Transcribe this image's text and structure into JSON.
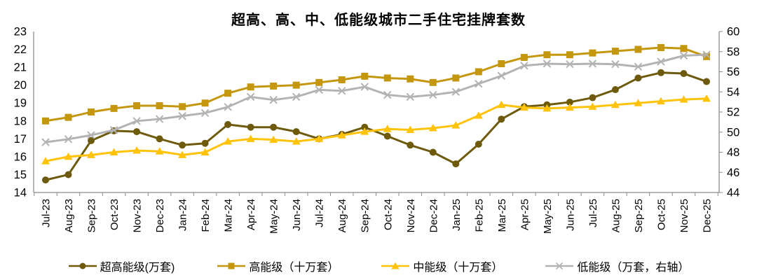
{
  "title": "超高、高、中、低能级城市二手住宅挂牌套数",
  "chart_data": {
    "type": "line",
    "x": [
      "Jul-23",
      "Aug-23",
      "Sep-23",
      "Oct-23",
      "Nov-23",
      "Dec-23",
      "Jan-24",
      "Feb-24",
      "Mar-24",
      "Apr-24",
      "May-24",
      "Jun-24",
      "Jul-24",
      "Aug-24",
      "Sep-24",
      "Oct-24",
      "Nov-24",
      "Dec-24",
      "Jan-25",
      "Feb-25",
      "Mar-25",
      "Apr-25",
      "May-25",
      "Jun-25",
      "Jul-25",
      "Aug-25",
      "Sep-25",
      "Oct-25",
      "Nov-25",
      "Dec-25"
    ],
    "left_axis": {
      "min": 14,
      "max": 23,
      "step": 1
    },
    "right_axis": {
      "min": 44,
      "max": 60,
      "step": 2
    },
    "grid": false,
    "legend_position": "bottom",
    "axis_color": "#8c8c8c",
    "series": [
      {
        "name": "超高能级(万套)",
        "axis": "left",
        "marker": "circle",
        "color": "#6E5A0C",
        "values": [
          14.7,
          15.0,
          16.9,
          17.45,
          17.4,
          17.0,
          16.65,
          16.75,
          17.8,
          17.65,
          17.65,
          17.4,
          17.0,
          17.25,
          17.65,
          17.15,
          16.65,
          16.25,
          15.6,
          16.7,
          18.1,
          18.8,
          18.9,
          19.05,
          19.3,
          19.75,
          20.4,
          20.7,
          20.65,
          20.2
        ]
      },
      {
        "name": "高能级（十万套）",
        "axis": "left",
        "marker": "square",
        "color": "#C4970F",
        "values": [
          18.0,
          18.2,
          18.5,
          18.7,
          18.85,
          18.85,
          18.8,
          19.0,
          19.55,
          19.9,
          19.95,
          20.0,
          20.15,
          20.3,
          20.5,
          20.4,
          20.35,
          20.15,
          20.4,
          20.75,
          21.2,
          21.55,
          21.7,
          21.7,
          21.8,
          21.9,
          22.0,
          22.1,
          22.05,
          21.6
        ]
      },
      {
        "name": "中能级（十万套）",
        "axis": "left",
        "marker": "triangle",
        "color": "#FFC30B",
        "values": [
          15.75,
          16.0,
          16.1,
          16.25,
          16.35,
          16.3,
          16.1,
          16.25,
          16.85,
          17.0,
          16.95,
          16.85,
          17.0,
          17.2,
          17.4,
          17.55,
          17.5,
          17.6,
          17.75,
          18.3,
          18.9,
          18.75,
          18.7,
          18.75,
          18.8,
          18.9,
          19.0,
          19.1,
          19.2,
          19.25
        ]
      },
      {
        "name": "低能级（万套，右轴）",
        "axis": "right",
        "marker": "x",
        "color": "#B3B3B3",
        "values": [
          49.0,
          49.3,
          49.7,
          50.2,
          51.1,
          51.3,
          51.6,
          51.9,
          52.5,
          53.5,
          53.2,
          53.5,
          54.2,
          54.1,
          54.5,
          53.7,
          53.5,
          53.7,
          54.0,
          54.8,
          55.6,
          56.6,
          56.8,
          56.75,
          56.8,
          56.75,
          56.5,
          57.0,
          57.6,
          57.7
        ]
      }
    ]
  }
}
